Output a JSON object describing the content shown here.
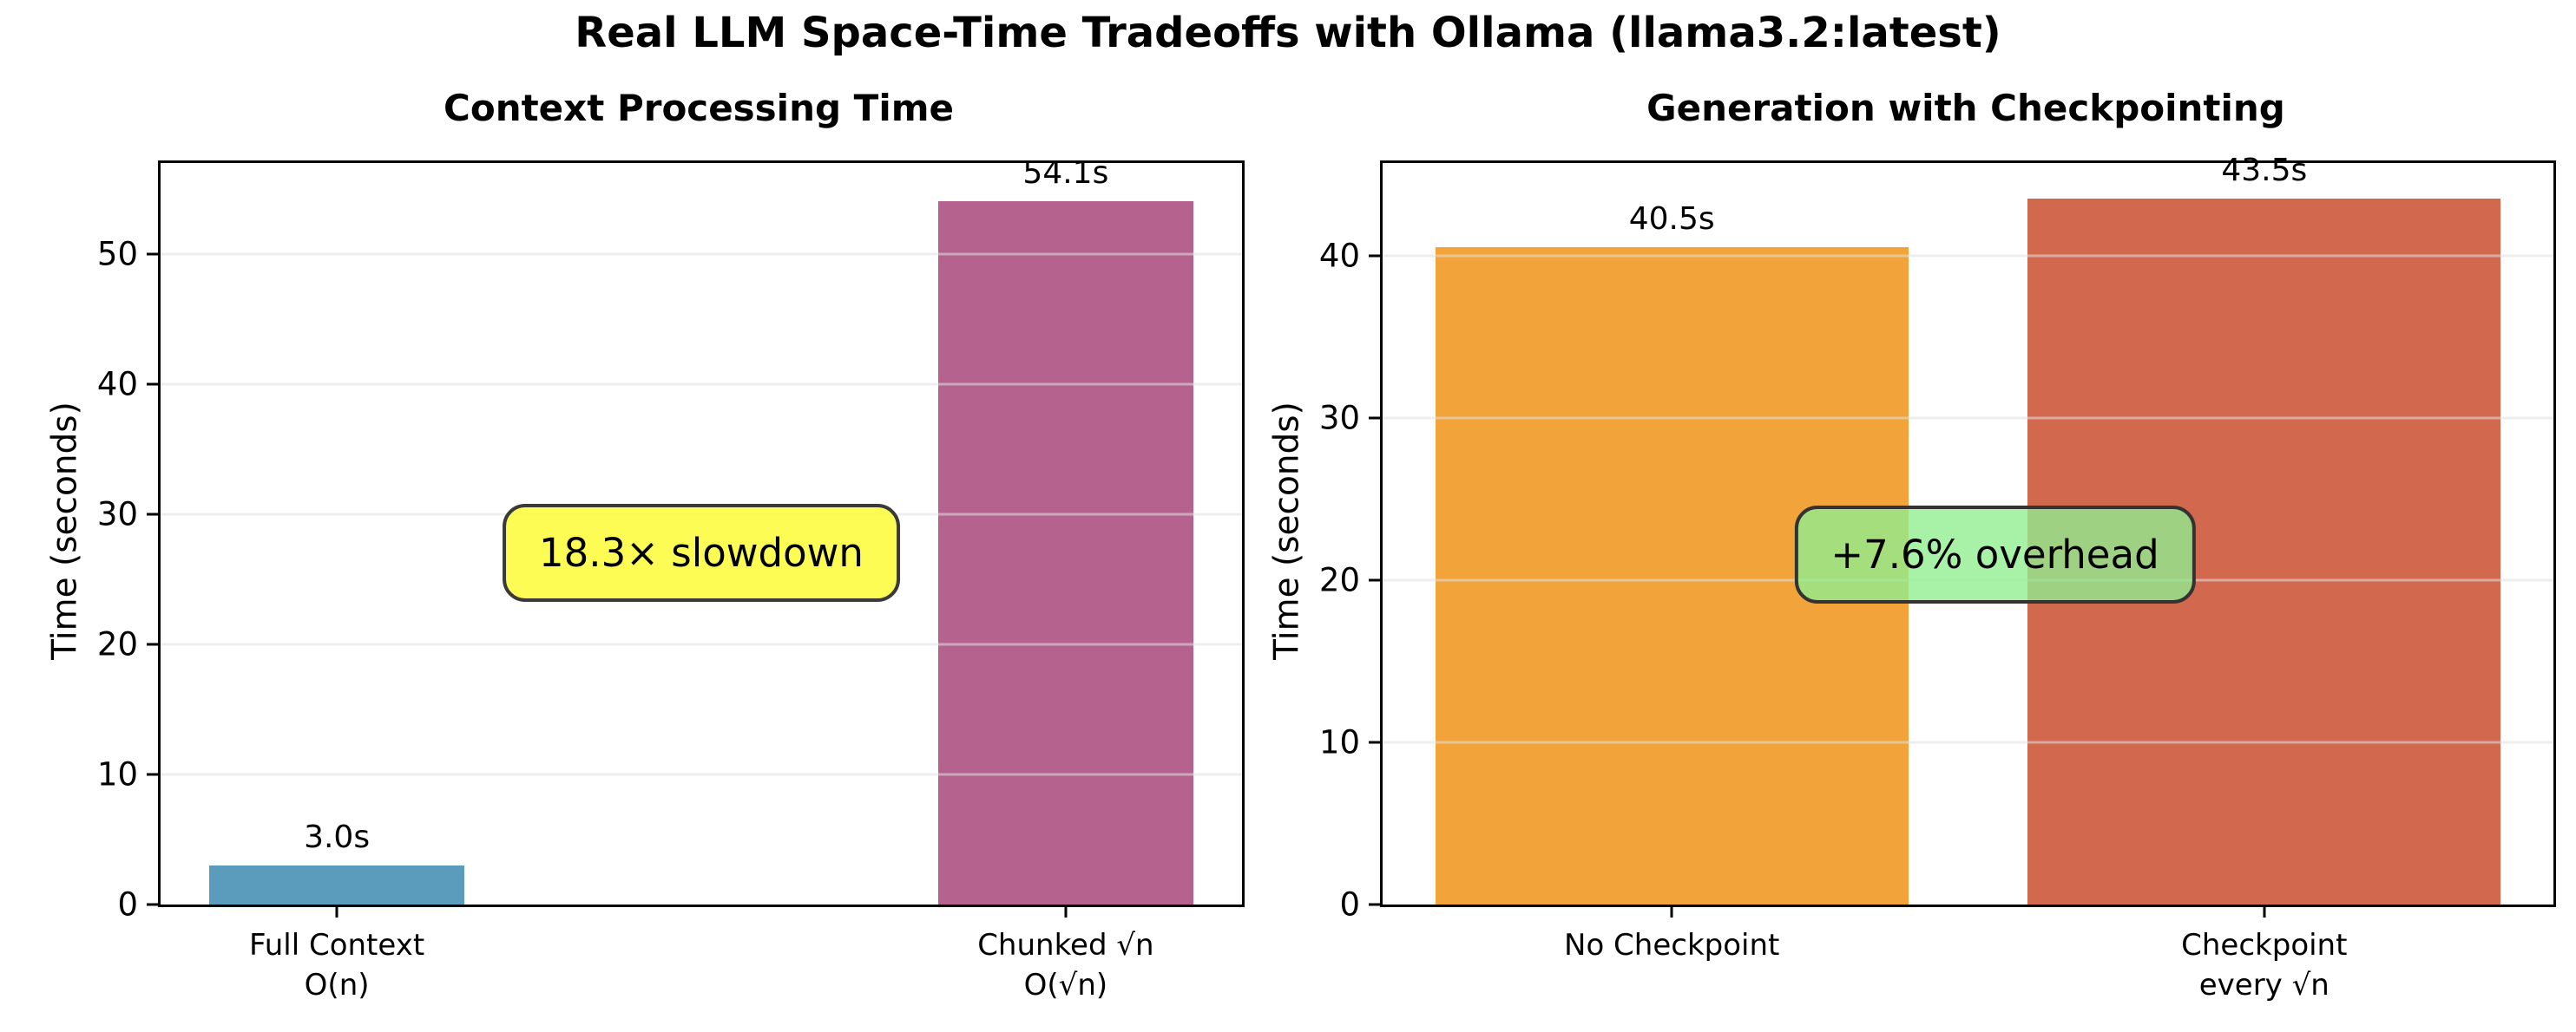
{
  "suptitle": "Real LLM Space-Time Tradeoffs with Ollama (llama3.2:latest)",
  "chart_data": [
    {
      "type": "bar",
      "title": "Context Processing Time",
      "ylabel": "Time (seconds)",
      "categories": [
        "Full Context O(n)",
        "Chunked √n O(√n)"
      ],
      "category_lines": [
        [
          "Full Context",
          "O(n)"
        ],
        [
          "Chunked √n",
          "O(√n)"
        ]
      ],
      "values": [
        3.0,
        54.1
      ],
      "bar_value_labels": [
        "3.0s",
        "54.1s"
      ],
      "bar_colors": [
        "#5b9bbc",
        "#b5638e"
      ],
      "yticks": [
        0,
        10,
        20,
        30,
        40,
        50
      ],
      "ylim": [
        0,
        57
      ],
      "grid": "horizontal",
      "legend": "none",
      "annotation": {
        "text": "18.3× slowdown",
        "bg_color": "rgba(252,252,61,0.88)",
        "border_color": "#3a3a3a"
      }
    },
    {
      "type": "bar",
      "title": "Generation with Checkpointing",
      "ylabel": "Time (seconds)",
      "categories": [
        "No Checkpoint",
        "Checkpoint every √n"
      ],
      "category_lines": [
        [
          "No Checkpoint"
        ],
        [
          "Checkpoint",
          "every √n"
        ]
      ],
      "values": [
        40.5,
        43.5
      ],
      "bar_value_labels": [
        "40.5s",
        "43.5s"
      ],
      "bar_colors": [
        "#f2a43a",
        "#d2684e"
      ],
      "yticks": [
        0,
        10,
        20,
        30,
        40
      ],
      "ylim": [
        0,
        45.7
      ],
      "grid": "horizontal",
      "legend": "none",
      "annotation": {
        "text": "+7.6% overhead",
        "bg_color": "rgba(144,238,144,0.78)",
        "border_color": "#333333"
      }
    }
  ]
}
